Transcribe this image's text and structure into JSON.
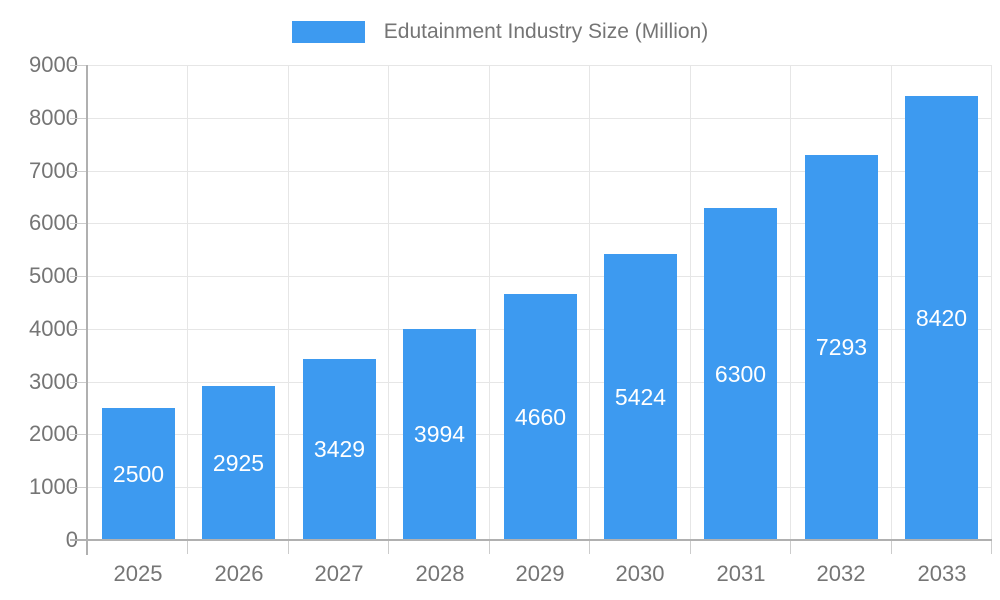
{
  "chart_data": {
    "type": "bar",
    "title": "Edutainment Industry Size (Million)",
    "categories": [
      "2025",
      "2026",
      "2027",
      "2028",
      "2029",
      "2030",
      "2031",
      "2032",
      "2033"
    ],
    "values": [
      2500,
      2925,
      3429,
      3994,
      4660,
      5424,
      6300,
      7293,
      8420
    ],
    "xlabel": "",
    "ylabel": "",
    "ylim": [
      0,
      9000
    ],
    "ytick_step": 1000,
    "ytick_labels": [
      "0",
      "1000",
      "2000",
      "3000",
      "4000",
      "5000",
      "6000",
      "7000",
      "8000",
      "9000"
    ],
    "grid": true,
    "legend_position": "top",
    "bar_label_position": "inside-center",
    "colors": {
      "bar": "#3D9AF0",
      "bar_value_text": "#ffffff",
      "axis_text": "#757575",
      "legend_text": "#757575",
      "grid_line": "#e6e6e6",
      "axis_line": "#b0b0b0",
      "tick_line": "#cccccc",
      "background": "#ffffff"
    }
  }
}
